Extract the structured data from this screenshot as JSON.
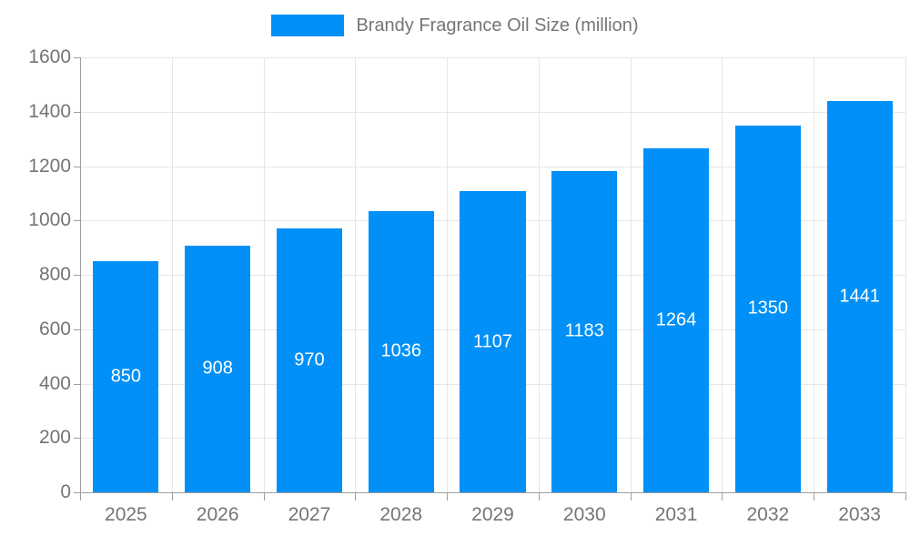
{
  "chart_data": {
    "type": "bar",
    "title": "Brandy Fragrance Oil Size (million)",
    "categories": [
      "2025",
      "2026",
      "2027",
      "2028",
      "2029",
      "2030",
      "2031",
      "2032",
      "2033"
    ],
    "series": [
      {
        "name": "Brandy Fragrance Oil Size (million)",
        "values": [
          850,
          908,
          970,
          1036,
          1107,
          1183,
          1264,
          1350,
          1441
        ]
      }
    ],
    "xlabel": "",
    "ylabel": "",
    "ylim": [
      0,
      1600
    ],
    "ytick_step": 200,
    "ytick_labels": [
      "0",
      "200",
      "400",
      "600",
      "800",
      "1000",
      "1200",
      "1400",
      "1600"
    ],
    "grid": true,
    "legend_position": "top-center",
    "value_labels_shown": true,
    "colors": {
      "bar": "#0190f7",
      "value_text": "#ffffff",
      "axis_text": "#757575",
      "grid_line": "#e6e6e6",
      "axis_line": "#9e9e9e",
      "background": "#ffffff"
    }
  }
}
